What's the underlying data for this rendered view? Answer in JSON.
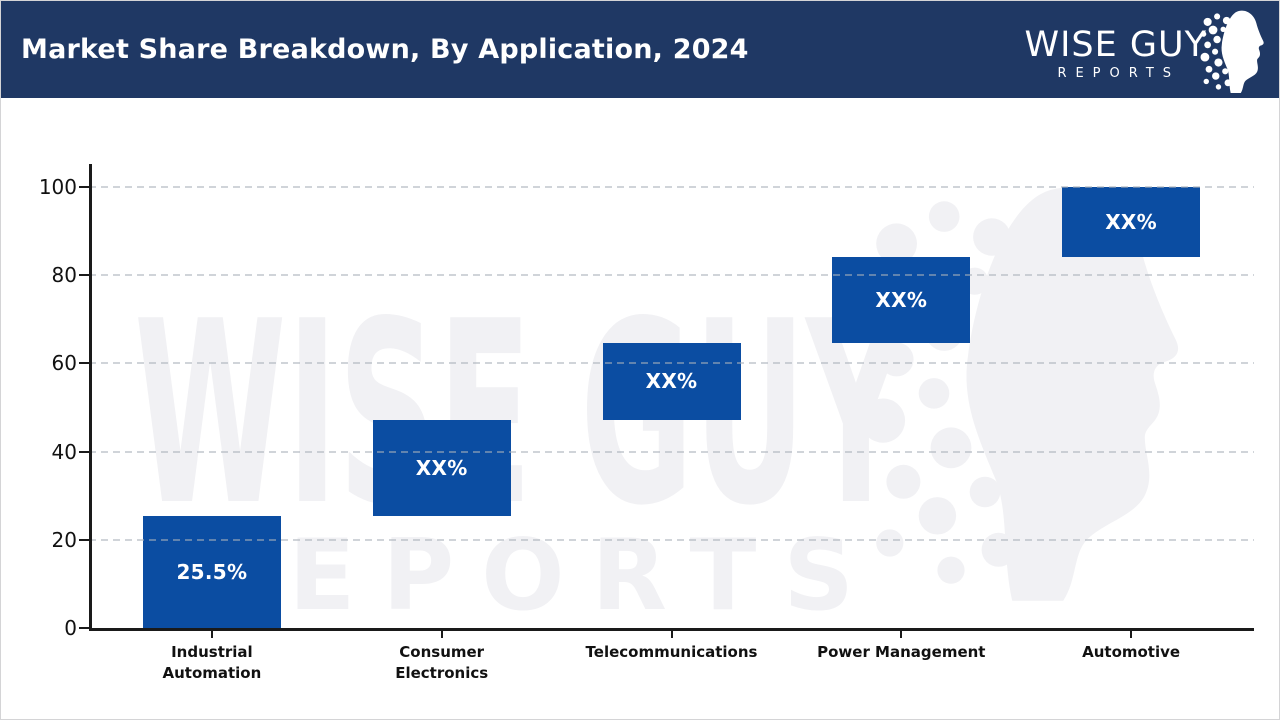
{
  "header": {
    "title": "Market Share Breakdown, By Application, 2024",
    "bg_color": "#1f3864",
    "logo": {
      "wordmark": "WISE GUY",
      "subtitle": "REPORTS"
    }
  },
  "watermark": {
    "line1": "WISE GUY",
    "line2": "REPORTS",
    "color": "#f1f1f4"
  },
  "chart_data": {
    "type": "bar",
    "subtype": "waterfall (stacked percentage, floating bars)",
    "title": "Market Share Breakdown, By Application, 2024",
    "xlabel": "",
    "ylabel": "",
    "ylim": [
      0,
      105
    ],
    "yticks": [
      0,
      20,
      40,
      60,
      80,
      100
    ],
    "grid": "horizontal dashed, drawn over bars",
    "legend": "none",
    "bar_color": "#0b4da2",
    "value_label_color": "#ffffff",
    "categories": [
      "Industrial Automation",
      "Consumer Electronics",
      "Telecommunications",
      "Power Management",
      "Automotive"
    ],
    "category_label_lines": [
      [
        "Industrial",
        "Automation"
      ],
      [
        "Consumer",
        "Electronics"
      ],
      [
        "Telecommunications"
      ],
      [
        "Power Management"
      ],
      [
        "Automotive"
      ]
    ],
    "segments": [
      {
        "category": "Industrial Automation",
        "start": 0,
        "end": 25.5,
        "label": "25.5%"
      },
      {
        "category": "Consumer Electronics",
        "start": 25.5,
        "end": 47.2,
        "label": "XX%"
      },
      {
        "category": "Telecommunications",
        "start": 47.2,
        "end": 64.6,
        "label": "XX%"
      },
      {
        "category": "Power Management",
        "start": 64.6,
        "end": 84.1,
        "label": "XX%"
      },
      {
        "category": "Automotive",
        "start": 84.1,
        "end": 100,
        "label": "XX%"
      }
    ]
  }
}
